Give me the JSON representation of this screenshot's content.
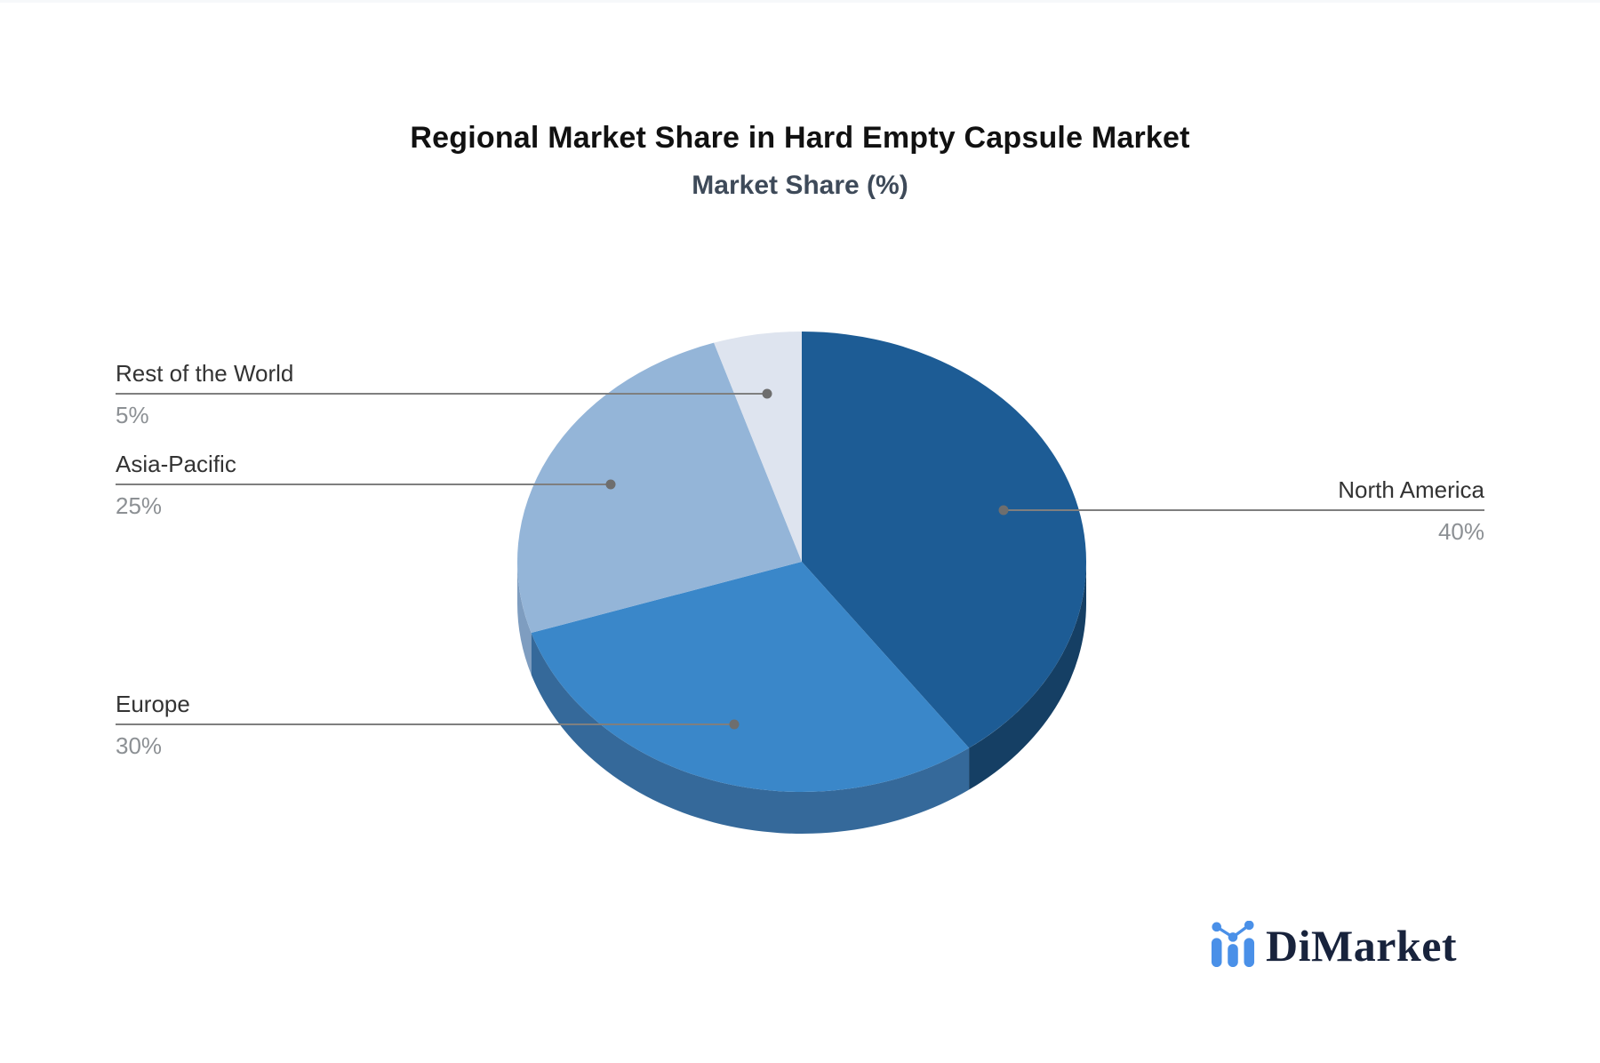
{
  "page": {
    "background": "#ffffff"
  },
  "header": {
    "title": "Regional Market Share in Hard Empty Capsule Market",
    "subtitle": "Market Share (%)"
  },
  "chart_data": {
    "type": "pie",
    "style": "3d-pie",
    "title": "Regional Market Share in Hard Empty Capsule Market",
    "subtitle": "Market Share (%)",
    "unit": "%",
    "start_angle_deg": 0,
    "direction": "clockwise",
    "legend_position": "callout-labels",
    "slices": [
      {
        "label": "North America",
        "value": 40,
        "display_value": "40%",
        "color": "#1D5C95",
        "side_color": "#153F64"
      },
      {
        "label": "Europe",
        "value": 30,
        "display_value": "30%",
        "color": "#3A87C9",
        "side_color": "#35699A"
      },
      {
        "label": "Asia-Pacific",
        "value": 25,
        "display_value": "25%",
        "color": "#94B5D8",
        "side_color": "#7E9DC0"
      },
      {
        "label": "Rest of the World",
        "value": 5,
        "display_value": "5%",
        "color": "#DEE4EF",
        "side_color": "#C5CFDF"
      }
    ]
  },
  "callouts": {
    "line_color": "#7F7F7F",
    "dot_color": "#6E6E6E",
    "label_color": "#333333",
    "value_color": "#8C9094"
  },
  "branding": {
    "logo_text": "DiMarket",
    "logo_icon": "bar-line-chart-icon",
    "logo_text_color": "#18233C",
    "logo_icon_color": "#4A90E8"
  }
}
